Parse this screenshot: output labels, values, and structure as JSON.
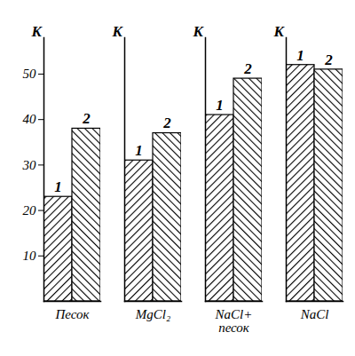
{
  "chart_data": {
    "type": "bar",
    "y_label": "K",
    "categories": [
      "Песок",
      "MgCl₂",
      "NaCl+\nпесок",
      "NaCl"
    ],
    "series": [
      {
        "name": "1",
        "color": "#000000",
        "values": [
          23,
          31,
          41,
          52
        ]
      },
      {
        "name": "2",
        "color": "#000000",
        "values": [
          38,
          37,
          49,
          51
        ]
      }
    ],
    "ylim": [
      0,
      58
    ],
    "yticks": [
      10,
      20,
      30,
      40,
      50
    ],
    "grid": false
  }
}
